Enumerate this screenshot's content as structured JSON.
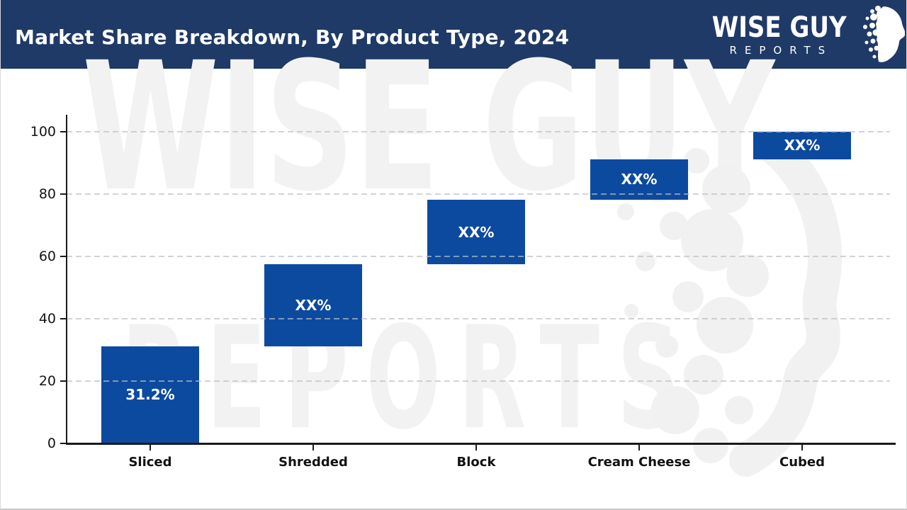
{
  "header": {
    "title": "Market Share Breakdown, By Product Type, 2024",
    "logo": {
      "name_line": "WISE GUY",
      "sub_line": "REPORTS"
    },
    "bg_color": "#1f3a66"
  },
  "watermark": {
    "name_line": "WISE GUY",
    "sub_line": "REPORTS"
  },
  "chart_data": {
    "type": "bar",
    "subtype": "floating-segment-waterfall",
    "title": "Market Share Breakdown, By Product Type, 2024",
    "categories": [
      "Sliced",
      "Shredded",
      "Block",
      "Cream Cheese",
      "Cubed"
    ],
    "segments": [
      {
        "category": "Sliced",
        "start": 0,
        "end": 31.2,
        "label": "31.2%"
      },
      {
        "category": "Shredded",
        "start": 31.2,
        "end": 57.4,
        "label": "XX%"
      },
      {
        "category": "Block",
        "start": 57.4,
        "end": 78.2,
        "label": "XX%"
      },
      {
        "category": "Cream Cheese",
        "start": 78.2,
        "end": 91.2,
        "label": "XX%"
      },
      {
        "category": "Cubed",
        "start": 91.2,
        "end": 100,
        "label": "XX%"
      }
    ],
    "y_ticks": [
      0,
      20,
      40,
      60,
      80,
      100
    ],
    "ylim": [
      0,
      105
    ],
    "xlabel": "",
    "ylabel": "",
    "grid": "dashed horizontal",
    "legend": false,
    "values_masked": true,
    "bar_color": "#0c4aa0",
    "bar_label_color": "#ffffff"
  }
}
